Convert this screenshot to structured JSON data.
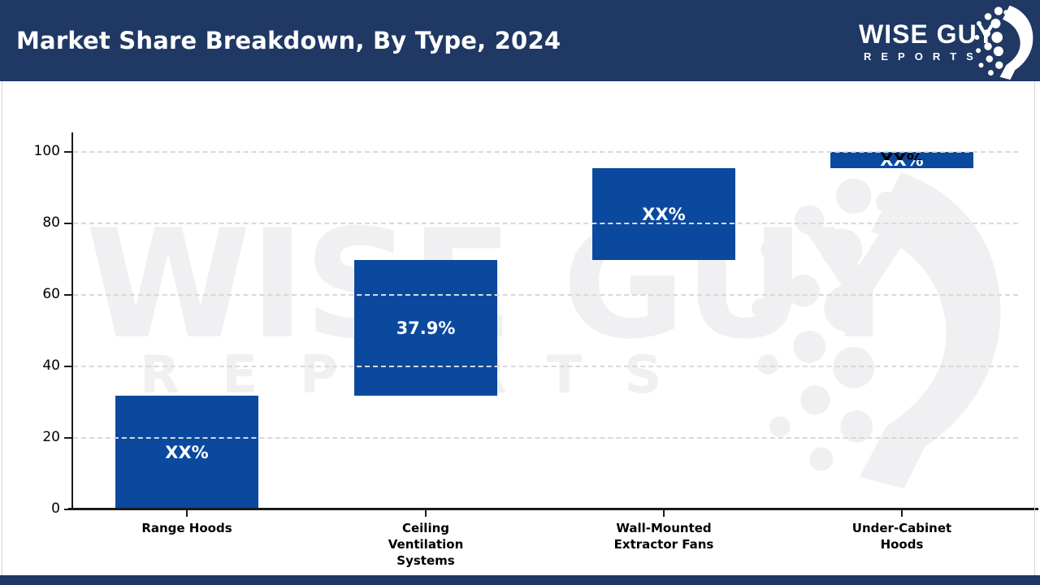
{
  "header": {
    "title": "Market Share Breakdown, By Type, 2024",
    "logo": {
      "name": "WISE GUY",
      "tagline": "REPORTS"
    }
  },
  "watermark": {
    "name": "WISE GUY",
    "tagline": "REPORTS"
  },
  "chart_data": {
    "type": "bar",
    "variant": "waterfall",
    "title": "Market Share Breakdown, By Type, 2024",
    "categories": [
      "Range Hoods",
      "Ceiling\nVentilation\nSystems",
      "Wall-Mounted\nExtractor Fans",
      "Under-Cabinet\nHoods"
    ],
    "segments": [
      {
        "category": "Range Hoods",
        "start": 0,
        "end": 31.8,
        "value": 31.8,
        "label": "XX%"
      },
      {
        "category": "Ceiling Ventilation Systems",
        "start": 31.8,
        "end": 69.7,
        "value": 37.9,
        "label": "37.9%"
      },
      {
        "category": "Wall-Mounted Extractor Fans",
        "start": 69.7,
        "end": 95.4,
        "value": 25.7,
        "label": "XX%"
      },
      {
        "category": "Under-Cabinet Hoods",
        "start": 95.4,
        "end": 100,
        "value": 4.6,
        "label": "XX%"
      }
    ],
    "ylim": [
      0,
      105
    ],
    "yticks": [
      0,
      20,
      40,
      60,
      80,
      100
    ],
    "grid": "horizontal-dashed",
    "legend": "none",
    "bar_color": "#0b499f",
    "value_label_color": "#ffffff",
    "axis_color": "#1a1a1a",
    "gridline_color": "#d9d9d9",
    "header_color": "#1f3864",
    "watermark_color": "#f0f0f2"
  }
}
